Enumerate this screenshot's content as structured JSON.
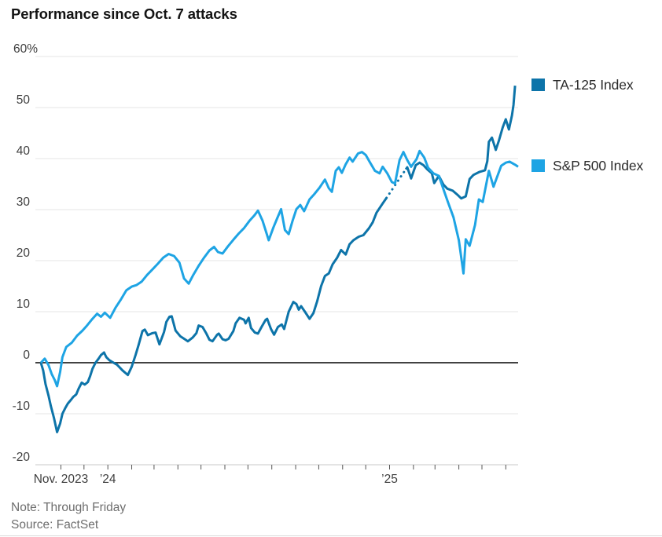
{
  "header": {
    "title": "Performance since Oct. 7 attacks"
  },
  "legend": {
    "items": [
      {
        "label": "TA-125 Index",
        "color": "#0d74a9"
      },
      {
        "label": "S&P 500 Index",
        "color": "#1ea4e4"
      }
    ]
  },
  "footer": {
    "note": "Note: Through Friday",
    "source": "Source: FactSet"
  },
  "chart_data": {
    "type": "line",
    "title": "Performance since Oct. 7 attacks",
    "unit": "% change since Oct. 6, 2023",
    "x_range": [
      "2023-10-06",
      "2025-06-17"
    ],
    "ylim": [
      -20,
      62
    ],
    "grid_on": true,
    "legend_position": "right",
    "y_ticks": [
      "60%",
      "50",
      "40",
      "30",
      "20",
      "10",
      "0",
      "-10",
      "-20"
    ],
    "x_axis_labels": [
      {
        "text": "Nov. 2023",
        "date": "2023-11-01"
      },
      {
        "text": "’24",
        "date": "2024-01-01"
      },
      {
        "text": "’25",
        "date": "2025-01-01"
      }
    ],
    "month_ticks": {
      "from": "2023-11-01",
      "to": "2025-06-01"
    },
    "grid_color": "#e4e4e4",
    "zero_line_color": "#424242",
    "axis_line_color": "#c9c9c9",
    "tick_color": "#555555",
    "series": [
      {
        "name": "TA-125 Index",
        "color": "#0d74a9",
        "dotted_gap": {
          "after": "2024-12-28",
          "before": "2025-01-22"
        },
        "points": [
          [
            "2023-10-06",
            0
          ],
          [
            "2023-10-09",
            -1.5
          ],
          [
            "2023-10-12",
            -4.2
          ],
          [
            "2023-10-16",
            -6.5
          ],
          [
            "2023-10-19",
            -8.5
          ],
          [
            "2023-10-23",
            -10.8
          ],
          [
            "2023-10-27",
            -13.6
          ],
          [
            "2023-10-31",
            -11.9
          ],
          [
            "2023-11-03",
            -10.0
          ],
          [
            "2023-11-07",
            -8.8
          ],
          [
            "2023-11-10",
            -8.0
          ],
          [
            "2023-11-14",
            -7.3
          ],
          [
            "2023-11-17",
            -6.7
          ],
          [
            "2023-11-21",
            -6.2
          ],
          [
            "2023-11-24",
            -5.1
          ],
          [
            "2023-11-28",
            -3.9
          ],
          [
            "2023-12-02",
            -4.3
          ],
          [
            "2023-12-06",
            -3.8
          ],
          [
            "2023-12-09",
            -2.6
          ],
          [
            "2023-12-12",
            -1.2
          ],
          [
            "2023-12-16",
            0
          ],
          [
            "2023-12-20",
            0.8
          ],
          [
            "2023-12-23",
            1.5
          ],
          [
            "2023-12-27",
            2.0
          ],
          [
            "2023-12-30",
            1.1
          ],
          [
            "2024-01-03",
            0.5
          ],
          [
            "2024-01-06",
            0.2
          ],
          [
            "2024-01-13",
            -0.4
          ],
          [
            "2024-01-20",
            -1.5
          ],
          [
            "2024-01-27",
            -2.4
          ],
          [
            "2024-02-01",
            -0.8
          ],
          [
            "2024-02-06",
            1.5
          ],
          [
            "2024-02-10",
            3.5
          ],
          [
            "2024-02-15",
            6.2
          ],
          [
            "2024-02-18",
            6.5
          ],
          [
            "2024-02-22",
            5.4
          ],
          [
            "2024-02-28",
            5.8
          ],
          [
            "2024-03-03",
            5.9
          ],
          [
            "2024-03-08",
            3.6
          ],
          [
            "2024-03-14",
            6.0
          ],
          [
            "2024-03-17",
            8.0
          ],
          [
            "2024-03-21",
            9.0
          ],
          [
            "2024-03-24",
            9.1
          ],
          [
            "2024-03-29",
            6.3
          ],
          [
            "2024-04-04",
            5.2
          ],
          [
            "2024-04-10",
            4.6
          ],
          [
            "2024-04-14",
            4.2
          ],
          [
            "2024-04-20",
            4.9
          ],
          [
            "2024-04-25",
            5.8
          ],
          [
            "2024-04-28",
            7.3
          ],
          [
            "2024-05-03",
            7.0
          ],
          [
            "2024-05-08",
            5.7
          ],
          [
            "2024-05-12",
            4.5
          ],
          [
            "2024-05-16",
            4.2
          ],
          [
            "2024-05-22",
            5.5
          ],
          [
            "2024-05-24",
            5.7
          ],
          [
            "2024-05-29",
            4.6
          ],
          [
            "2024-06-02",
            4.4
          ],
          [
            "2024-06-06",
            4.7
          ],
          [
            "2024-06-12",
            6.2
          ],
          [
            "2024-06-15",
            7.7
          ],
          [
            "2024-06-20",
            8.8
          ],
          [
            "2024-06-26",
            8.4
          ],
          [
            "2024-06-28",
            7.7
          ],
          [
            "2024-07-02",
            8.8
          ],
          [
            "2024-07-05",
            6.8
          ],
          [
            "2024-07-10",
            5.9
          ],
          [
            "2024-07-14",
            5.7
          ],
          [
            "2024-07-19",
            7.1
          ],
          [
            "2024-07-24",
            8.4
          ],
          [
            "2024-07-26",
            8.6
          ],
          [
            "2024-07-31",
            6.6
          ],
          [
            "2024-08-04",
            5.5
          ],
          [
            "2024-08-09",
            7.0
          ],
          [
            "2024-08-14",
            7.5
          ],
          [
            "2024-08-17",
            6.6
          ],
          [
            "2024-08-23",
            10.0
          ],
          [
            "2024-08-29",
            11.9
          ],
          [
            "2024-09-02",
            11.5
          ],
          [
            "2024-09-05",
            10.4
          ],
          [
            "2024-09-08",
            11.1
          ],
          [
            "2024-09-13",
            10.0
          ],
          [
            "2024-09-19",
            8.6
          ],
          [
            "2024-09-24",
            9.7
          ],
          [
            "2024-09-29",
            12.1
          ],
          [
            "2024-10-04",
            15.0
          ],
          [
            "2024-10-09",
            17.0
          ],
          [
            "2024-10-14",
            17.5
          ],
          [
            "2024-10-19",
            19.3
          ],
          [
            "2024-10-25",
            20.6
          ],
          [
            "2024-10-30",
            22.1
          ],
          [
            "2024-11-05",
            21.2
          ],
          [
            "2024-11-10",
            23.2
          ],
          [
            "2024-11-15",
            24.0
          ],
          [
            "2024-11-22",
            24.7
          ],
          [
            "2024-11-28",
            25.0
          ],
          [
            "2024-12-05",
            26.3
          ],
          [
            "2024-12-10",
            27.5
          ],
          [
            "2024-12-15",
            29.4
          ],
          [
            "2024-12-23",
            31.2
          ],
          [
            "2024-12-28",
            32.3
          ],
          [
            "2025-01-22",
            37.9
          ],
          [
            "2025-01-24",
            38.3
          ],
          [
            "2025-01-29",
            36.1
          ],
          [
            "2025-02-04",
            38.7
          ],
          [
            "2025-02-09",
            39.2
          ],
          [
            "2025-02-14",
            38.7
          ],
          [
            "2025-02-19",
            37.9
          ],
          [
            "2025-02-25",
            37.1
          ],
          [
            "2025-02-28",
            35.2
          ],
          [
            "2025-03-06",
            36.6
          ],
          [
            "2025-03-12",
            34.9
          ],
          [
            "2025-03-17",
            34.1
          ],
          [
            "2025-03-24",
            33.7
          ],
          [
            "2025-03-31",
            32.8
          ],
          [
            "2025-04-04",
            32.2
          ],
          [
            "2025-04-10",
            32.6
          ],
          [
            "2025-04-15",
            36.0
          ],
          [
            "2025-04-20",
            36.8
          ],
          [
            "2025-04-28",
            37.4
          ],
          [
            "2025-05-05",
            37.7
          ],
          [
            "2025-05-08",
            39.5
          ],
          [
            "2025-05-10",
            43.3
          ],
          [
            "2025-05-14",
            44.1
          ],
          [
            "2025-05-19",
            41.7
          ],
          [
            "2025-05-23",
            43.5
          ],
          [
            "2025-05-28",
            46.1
          ],
          [
            "2025-06-01",
            47.7
          ],
          [
            "2025-06-05",
            45.7
          ],
          [
            "2025-06-09",
            48.5
          ],
          [
            "2025-06-11",
            50.5
          ],
          [
            "2025-06-13",
            54.3
          ]
        ]
      },
      {
        "name": "S&P 500 Index",
        "color": "#1ea4e4",
        "points": [
          [
            "2023-10-06",
            0
          ],
          [
            "2023-10-11",
            0.8
          ],
          [
            "2023-10-16",
            -0.5
          ],
          [
            "2023-10-20",
            -2.2
          ],
          [
            "2023-10-24",
            -3.4
          ],
          [
            "2023-10-27",
            -4.6
          ],
          [
            "2023-10-31",
            -1.8
          ],
          [
            "2023-11-03",
            1.1
          ],
          [
            "2023-11-08",
            3.1
          ],
          [
            "2023-11-15",
            3.9
          ],
          [
            "2023-11-22",
            5.3
          ],
          [
            "2023-11-29",
            6.3
          ],
          [
            "2023-12-05",
            7.3
          ],
          [
            "2023-12-12",
            8.6
          ],
          [
            "2023-12-18",
            9.6
          ],
          [
            "2023-12-23",
            9.0
          ],
          [
            "2023-12-28",
            9.8
          ],
          [
            "2024-01-04",
            8.8
          ],
          [
            "2024-01-11",
            10.8
          ],
          [
            "2024-01-18",
            12.4
          ],
          [
            "2024-01-25",
            14.2
          ],
          [
            "2024-02-01",
            14.9
          ],
          [
            "2024-02-07",
            15.2
          ],
          [
            "2024-02-14",
            15.9
          ],
          [
            "2024-02-21",
            17.2
          ],
          [
            "2024-02-28",
            18.3
          ],
          [
            "2024-03-06",
            19.4
          ],
          [
            "2024-03-13",
            20.6
          ],
          [
            "2024-03-20",
            21.3
          ],
          [
            "2024-03-27",
            20.9
          ],
          [
            "2024-04-03",
            19.6
          ],
          [
            "2024-04-09",
            16.5
          ],
          [
            "2024-04-15",
            15.5
          ],
          [
            "2024-04-21",
            17.2
          ],
          [
            "2024-04-28",
            19.0
          ],
          [
            "2024-05-05",
            20.6
          ],
          [
            "2024-05-12",
            22.0
          ],
          [
            "2024-05-18",
            22.7
          ],
          [
            "2024-05-23",
            21.7
          ],
          [
            "2024-05-29",
            21.4
          ],
          [
            "2024-06-05",
            22.8
          ],
          [
            "2024-06-12",
            24.1
          ],
          [
            "2024-06-19",
            25.3
          ],
          [
            "2024-06-26",
            26.4
          ],
          [
            "2024-07-03",
            27.8
          ],
          [
            "2024-07-09",
            28.8
          ],
          [
            "2024-07-14",
            29.8
          ],
          [
            "2024-07-20",
            27.8
          ],
          [
            "2024-07-28",
            24.0
          ],
          [
            "2024-08-03",
            26.5
          ],
          [
            "2024-08-08",
            28.3
          ],
          [
            "2024-08-13",
            30.1
          ],
          [
            "2024-08-18",
            26.0
          ],
          [
            "2024-08-23",
            25.2
          ],
          [
            "2024-08-28",
            27.8
          ],
          [
            "2024-09-02",
            30.1
          ],
          [
            "2024-09-07",
            30.9
          ],
          [
            "2024-09-12",
            29.7
          ],
          [
            "2024-09-19",
            32.0
          ],
          [
            "2024-09-25",
            33.0
          ],
          [
            "2024-10-02",
            34.3
          ],
          [
            "2024-10-09",
            35.9
          ],
          [
            "2024-10-14",
            34.2
          ],
          [
            "2024-10-18",
            33.5
          ],
          [
            "2024-10-23",
            37.6
          ],
          [
            "2024-10-27",
            38.3
          ],
          [
            "2024-10-31",
            37.2
          ],
          [
            "2024-11-05",
            38.9
          ],
          [
            "2024-11-10",
            40.2
          ],
          [
            "2024-11-14",
            39.4
          ],
          [
            "2024-11-21",
            41.0
          ],
          [
            "2024-11-26",
            41.3
          ],
          [
            "2024-12-01",
            40.7
          ],
          [
            "2024-12-06",
            39.4
          ],
          [
            "2024-12-13",
            37.6
          ],
          [
            "2024-12-19",
            37.1
          ],
          [
            "2024-12-23",
            38.4
          ],
          [
            "2024-12-29",
            37.1
          ],
          [
            "2025-01-04",
            35.4
          ],
          [
            "2025-01-08",
            35.1
          ],
          [
            "2025-01-14",
            39.7
          ],
          [
            "2025-01-19",
            41.3
          ],
          [
            "2025-01-24",
            39.7
          ],
          [
            "2025-01-29",
            38.4
          ],
          [
            "2025-02-05",
            39.9
          ],
          [
            "2025-02-09",
            41.5
          ],
          [
            "2025-02-15",
            40.2
          ],
          [
            "2025-02-20",
            38.2
          ],
          [
            "2025-02-27",
            37.1
          ],
          [
            "2025-03-06",
            36.6
          ],
          [
            "2025-03-12",
            34.0
          ],
          [
            "2025-03-18",
            31.4
          ],
          [
            "2025-03-25",
            28.5
          ],
          [
            "2025-04-01",
            24.0
          ],
          [
            "2025-04-07",
            17.5
          ],
          [
            "2025-04-10",
            24.2
          ],
          [
            "2025-04-15",
            22.9
          ],
          [
            "2025-04-22",
            27.0
          ],
          [
            "2025-04-27",
            32.0
          ],
          [
            "2025-05-02",
            31.5
          ],
          [
            "2025-05-10",
            37.6
          ],
          [
            "2025-05-16",
            34.5
          ],
          [
            "2025-05-26",
            38.6
          ],
          [
            "2025-06-01",
            39.2
          ],
          [
            "2025-06-06",
            39.4
          ],
          [
            "2025-06-13",
            38.8
          ],
          [
            "2025-06-17",
            38.4
          ]
        ]
      }
    ]
  }
}
